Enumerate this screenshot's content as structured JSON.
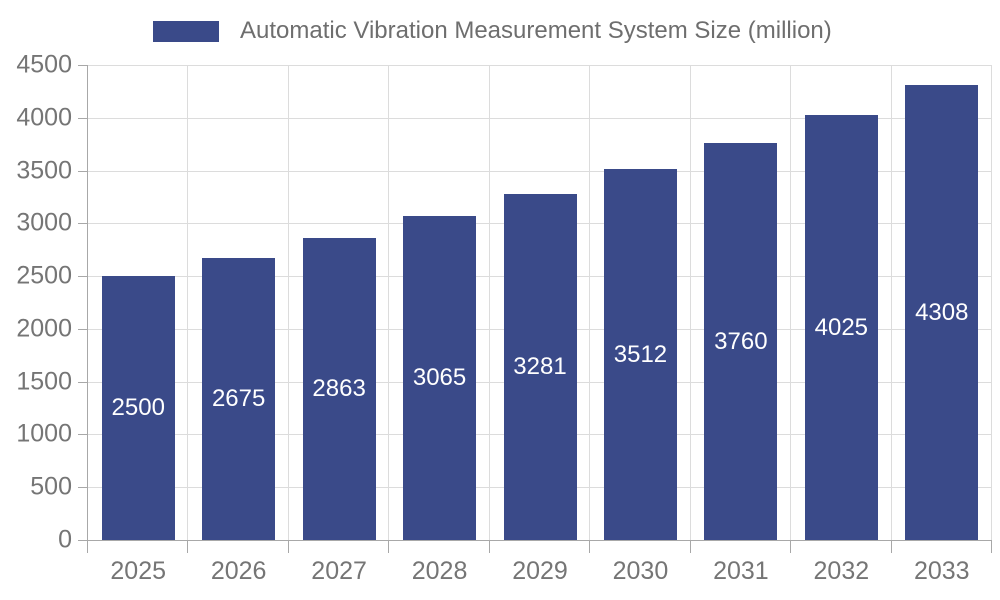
{
  "legend": {
    "label": "Automatic Vibration Measurement System Size (million)"
  },
  "chart_data": {
    "type": "bar",
    "title": "Automatic Vibration Measurement System Size (million)",
    "categories": [
      "2025",
      "2026",
      "2027",
      "2028",
      "2029",
      "2030",
      "2031",
      "2032",
      "2033"
    ],
    "values": [
      2500,
      2675,
      2863,
      3065,
      3281,
      3512,
      3760,
      4025,
      4308
    ],
    "xlabel": "",
    "ylabel": "",
    "ylim": [
      0,
      4500
    ],
    "ytick_step": 500,
    "grid": true,
    "legend_position": "top",
    "value_labels": "inside-center",
    "colors": {
      "bar": "#3A4A89",
      "value_label": "#FFFFFF",
      "grid_line": "#DCDCDC",
      "axis_line": "#A8A8A8",
      "tick_label": "#757575",
      "title_text": "#6E6E6E",
      "background": "#FFFFFF"
    }
  }
}
